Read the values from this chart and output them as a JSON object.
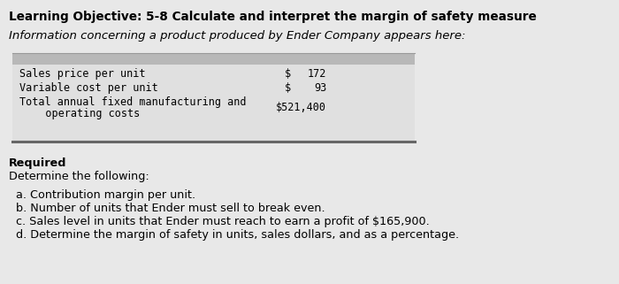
{
  "title": "Learning Objective: 5-8 Calculate and interpret the margin of safety measure",
  "subtitle": "Information concerning a product produced by Ender Company appears here:",
  "required_header": "Required",
  "required_subheader": "Determine the following:",
  "items": [
    "a. Contribution margin per unit.",
    "b. Number of units that Ender must sell to break even.",
    "c. Sales level in units that Ender must reach to earn a profit of $165,900.",
    "d. Determine the margin of safety in units, sales dollars, and as a percentage."
  ],
  "row1_label": "Sales price per unit",
  "row1_sym": "$",
  "row1_val": "172",
  "row2_label": "Variable cost per unit",
  "row2_sym": "$",
  "row2_val": "93",
  "row3_label1": "Total annual fixed manufacturing and",
  "row3_label2": "   operating costs",
  "row3_val": "$521,400",
  "page_bg": "#e8e8e8",
  "table_header_color": "#b8b8b8",
  "table_bg_color": "#e0e0e0",
  "table_bottom_color": "#888888",
  "title_fontsize": 9.8,
  "subtitle_fontsize": 9.5,
  "mono_fontsize": 8.5,
  "body_fontsize": 9.2,
  "items_fontsize": 9.2
}
